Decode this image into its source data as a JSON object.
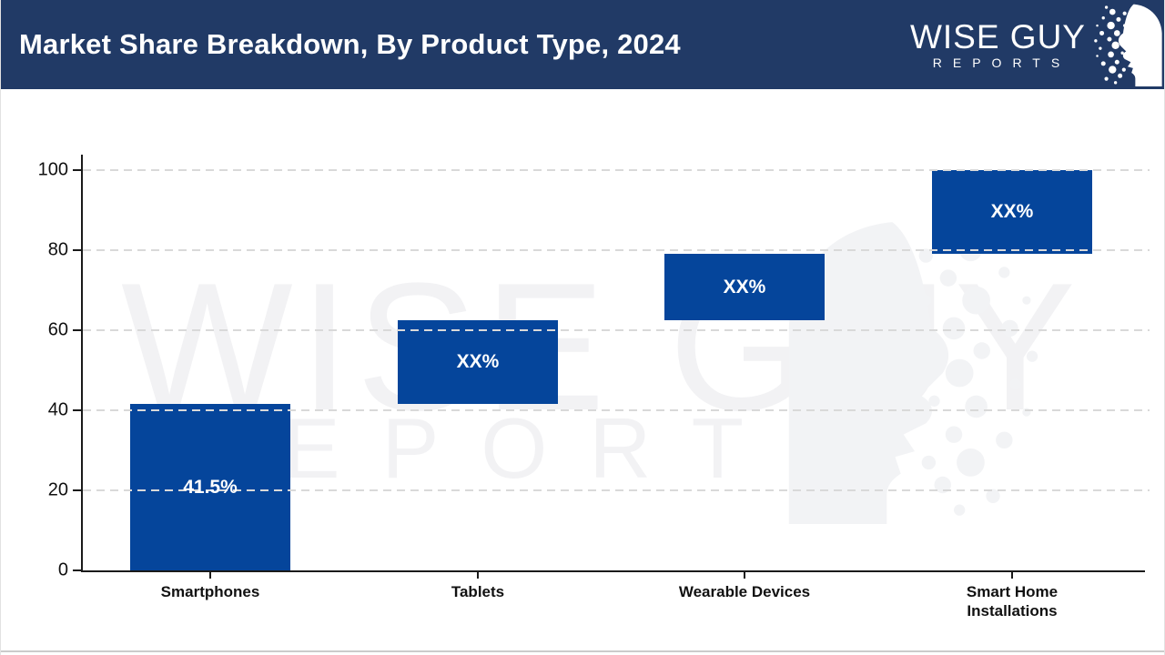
{
  "header": {
    "title": "Market Share Breakdown, By Product Type, 2024",
    "logo": {
      "line1": "WISE GUY",
      "line2": "REPORTS"
    }
  },
  "watermark": {
    "line1": "WISE GUY",
    "line2": "REPORTS"
  },
  "chart_data": {
    "type": "bar",
    "subtype": "waterfall",
    "title": "Market Share Breakdown, By Product Type, 2024",
    "categories": [
      "Smartphones",
      "Tablets",
      "Wearable Devices",
      "Smart Home Installations"
    ],
    "segments": [
      {
        "category": "Smartphones",
        "label": "41.5%",
        "start": 0,
        "end": 41.5
      },
      {
        "category": "Tablets",
        "label": "XX%",
        "start": 41.5,
        "end": 62.5
      },
      {
        "category": "Wearable Devices",
        "label": "XX%",
        "start": 62.5,
        "end": 79
      },
      {
        "category": "Smart Home Installations",
        "label": "XX%",
        "start": 79,
        "end": 100
      }
    ],
    "ylim": [
      0,
      100
    ],
    "yticks": [
      0,
      20,
      40,
      60,
      80,
      100
    ],
    "xlabel": "",
    "ylabel": "",
    "grid": "horizontal-dashed",
    "legend": "none"
  },
  "colors": {
    "header_bg": "#213a66",
    "bar": "#05459b",
    "bar_label": "#ffffff",
    "gridline": "#d9d9d9",
    "axis": "#1a1a1a",
    "watermark": "#f2f2f4"
  }
}
